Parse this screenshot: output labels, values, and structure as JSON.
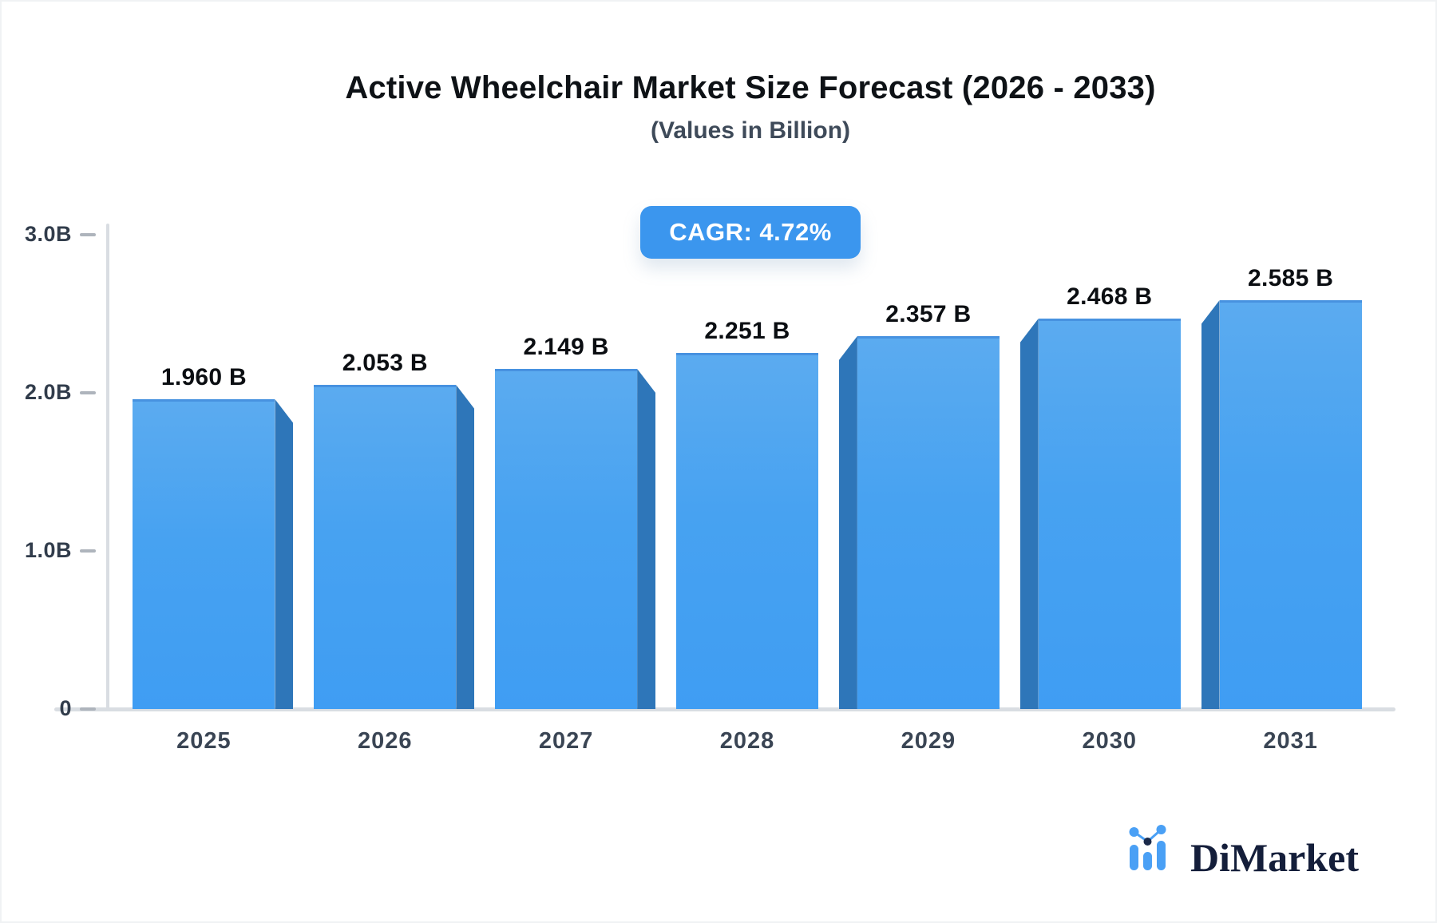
{
  "header": {
    "title": "Active Wheelchair Market Size Forecast (2026 - 2033)",
    "subtitle": "(Values in Billion)",
    "badge": "CAGR: 4.72%"
  },
  "chart_data": {
    "type": "bar",
    "title": "Active Wheelchair Market Size Forecast (2026 - 2033)",
    "subtitle": "(Values in Billion)",
    "annotation": "CAGR: 4.72%",
    "unit": "Billion",
    "categories": [
      "2025",
      "2026",
      "2027",
      "2028",
      "2029",
      "2030",
      "2031"
    ],
    "values": [
      1.96,
      2.053,
      2.149,
      2.251,
      2.357,
      2.468,
      2.585
    ],
    "value_labels": [
      "1.960 B",
      "2.053 B",
      "2.149 B",
      "2.251 B",
      "2.357 B",
      "2.468 B",
      "2.585 B"
    ],
    "ylim": [
      0,
      3
    ],
    "ytick_values": [
      0,
      1,
      2,
      3
    ],
    "ytick_labels": [
      "0",
      "1.0B",
      "2.0B",
      "3.0B"
    ],
    "grid": false,
    "legend": false,
    "bar_style": "3d-bevel, bevel right for bars left of center, bevel left for bars right of center"
  },
  "colors": {
    "badge_bg": "#3b96ee",
    "bar_face_top": "#5babf0",
    "bar_face_bottom": "#3f9df3",
    "bar_side": "#2e76b9",
    "axis_line": "#d9dde2",
    "tick_dash": "#aeb4bc",
    "title_text": "#0e1216",
    "subtitle_text": "#3e4a59",
    "axis_label_text": "#313c4b",
    "value_label_text": "#0b0e12",
    "logo_text": "#141e3a",
    "logo_icon_blue": "#4aa0f5"
  },
  "footer": {
    "logo_text": "DiMarket"
  }
}
